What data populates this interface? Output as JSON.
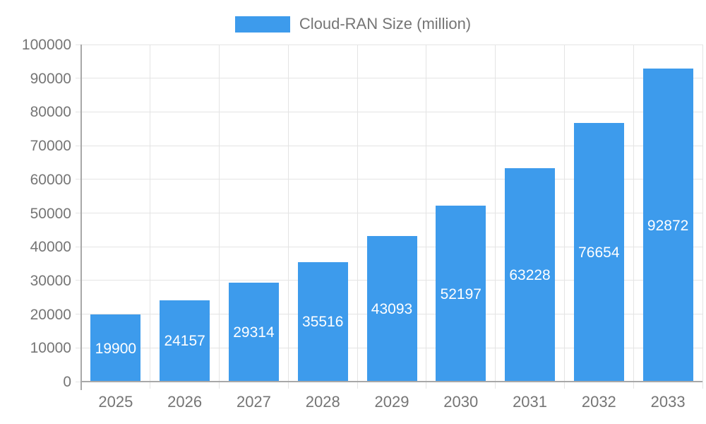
{
  "legend": {
    "label": "Cloud-RAN Size (million)"
  },
  "chart_data": {
    "type": "bar",
    "title": "Cloud-RAN Size (million)",
    "categories": [
      "2025",
      "2026",
      "2027",
      "2028",
      "2029",
      "2030",
      "2031",
      "2032",
      "2033"
    ],
    "values": [
      19900,
      24157,
      29314,
      35516,
      43093,
      52197,
      63228,
      76654,
      92872
    ],
    "series": [
      {
        "name": "Cloud-RAN Size (million)",
        "values": [
          19900,
          24157,
          29314,
          35516,
          43093,
          52197,
          63228,
          76654,
          92872
        ]
      }
    ],
    "xlabel": "",
    "ylabel": "",
    "ylim": [
      0,
      100000
    ],
    "ytick_step": 10000,
    "yticks": [
      0,
      10000,
      20000,
      30000,
      40000,
      50000,
      60000,
      70000,
      80000,
      90000,
      100000
    ],
    "grid": true,
    "legend_position": "top-center",
    "value_labels": "inside-center",
    "colors": {
      "bar": "#3D9BEC",
      "bar_label_text": "#ffffff",
      "axis_text": "#757575",
      "axis_line": "#a8a8a8",
      "gridline": "#e4e4e4",
      "background": "#ffffff"
    }
  }
}
